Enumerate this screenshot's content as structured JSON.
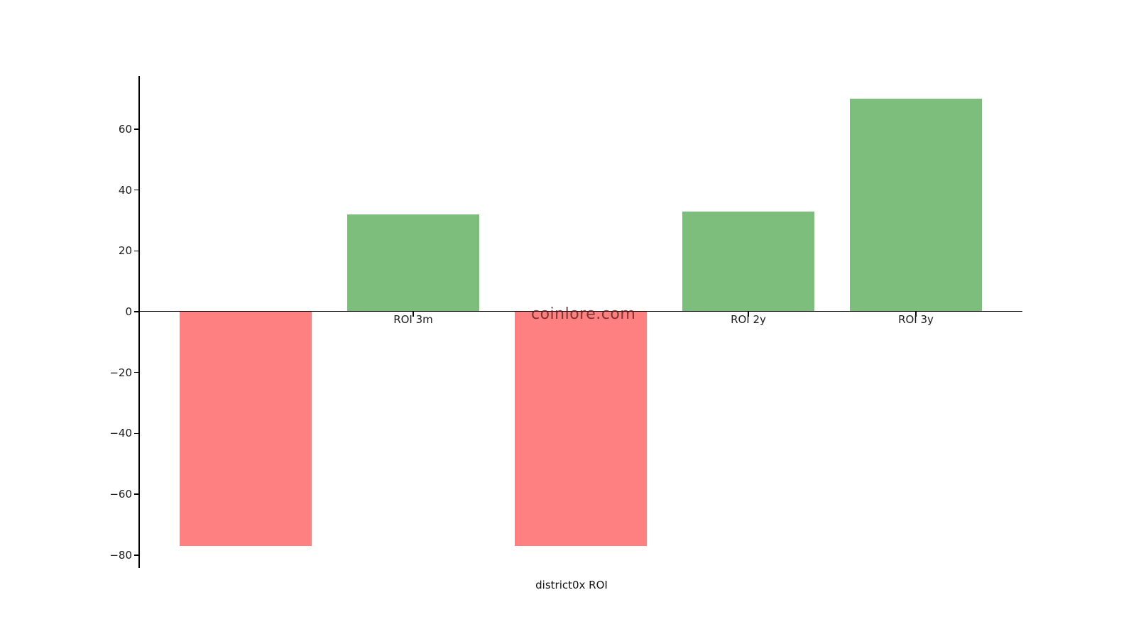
{
  "title": {
    "text": "district0x ROI"
  },
  "watermark": {
    "text": "coinlore.com"
  },
  "chart_data": {
    "type": "bar",
    "title": "district0x ROI",
    "categories": [
      "",
      "ROI 3m",
      "",
      "ROI 2y",
      "ROI 3y"
    ],
    "values": [
      -77,
      32,
      -77,
      33,
      70
    ],
    "yticks": [
      60,
      40,
      20,
      0,
      -20,
      -40,
      -60,
      -80
    ],
    "ylim": [
      -84.4,
      77.4
    ],
    "xlabel": "",
    "ylabel": "",
    "grid": false,
    "legend": "none",
    "positive_color": "#7dbe7d",
    "negative_color": "#ff8080",
    "axis_color": "#000000",
    "tick_label_color": "#1a1a1a",
    "watermark_text": "coinlore.com"
  }
}
